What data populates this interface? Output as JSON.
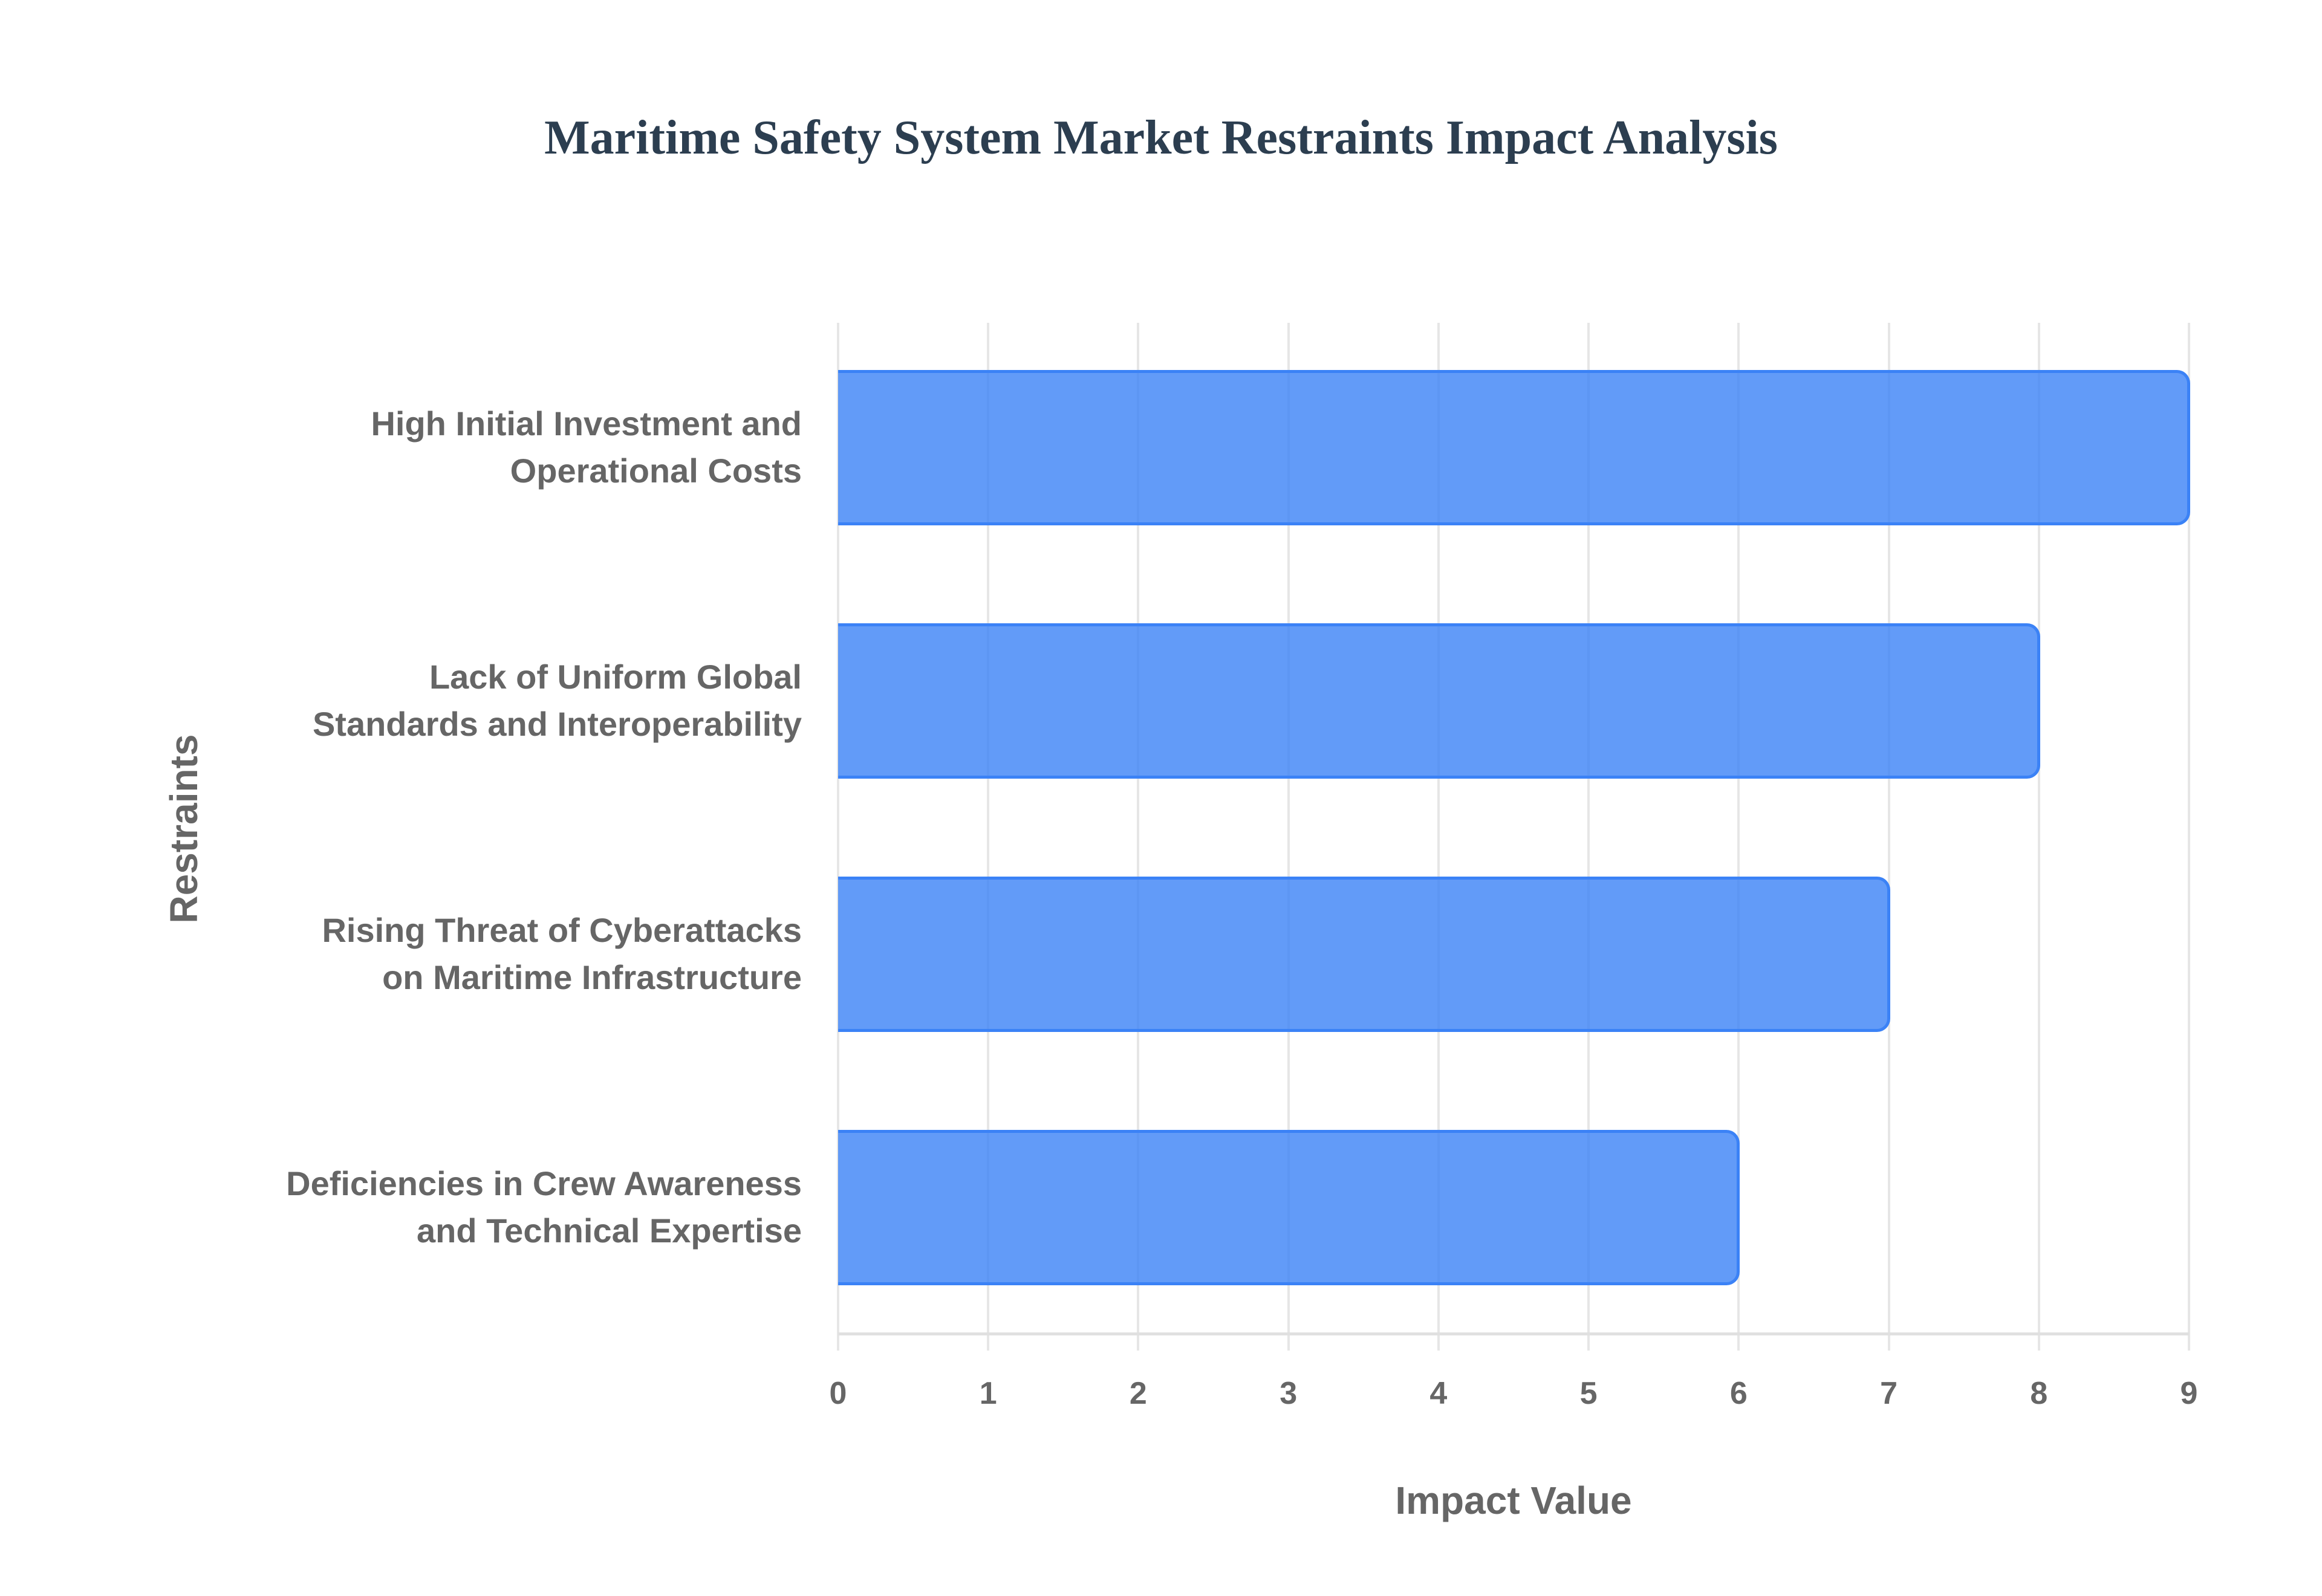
{
  "chart_data": {
    "type": "bar",
    "orientation": "horizontal",
    "title": "Maritime Safety System Market Restraints Impact Analysis",
    "xlabel": "Impact Value",
    "ylabel": "Restraints",
    "categories": [
      "High Initial Investment and Operational Costs",
      "Lack of Uniform Global Standards and Interoperability",
      "Rising Threat of Cyberattacks on Maritime Infrastructure",
      "Deficiencies in Crew Awareness and Technical Expertise"
    ],
    "category_lines": [
      [
        "High Initial Investment and",
        "Operational Costs"
      ],
      [
        "Lack of Uniform Global",
        "Standards and Interoperability"
      ],
      [
        "Rising Threat of Cyberattacks",
        "on Maritime Infrastructure"
      ],
      [
        "Deficiencies in Crew Awareness",
        "and Technical Expertise"
      ]
    ],
    "values": [
      9,
      8,
      7,
      6
    ],
    "xlim": [
      0,
      9
    ],
    "x_ticks": [
      "0",
      "1",
      "2",
      "3",
      "4",
      "5",
      "6",
      "7",
      "8",
      "9"
    ],
    "grid": true,
    "legend": "none",
    "colors": {
      "bar_fill": "rgba(59,130,246,0.8)",
      "bar_border": "#3b82f6",
      "title": "#2c3e50",
      "text": "#666666",
      "grid": "#e6e6e6"
    }
  }
}
